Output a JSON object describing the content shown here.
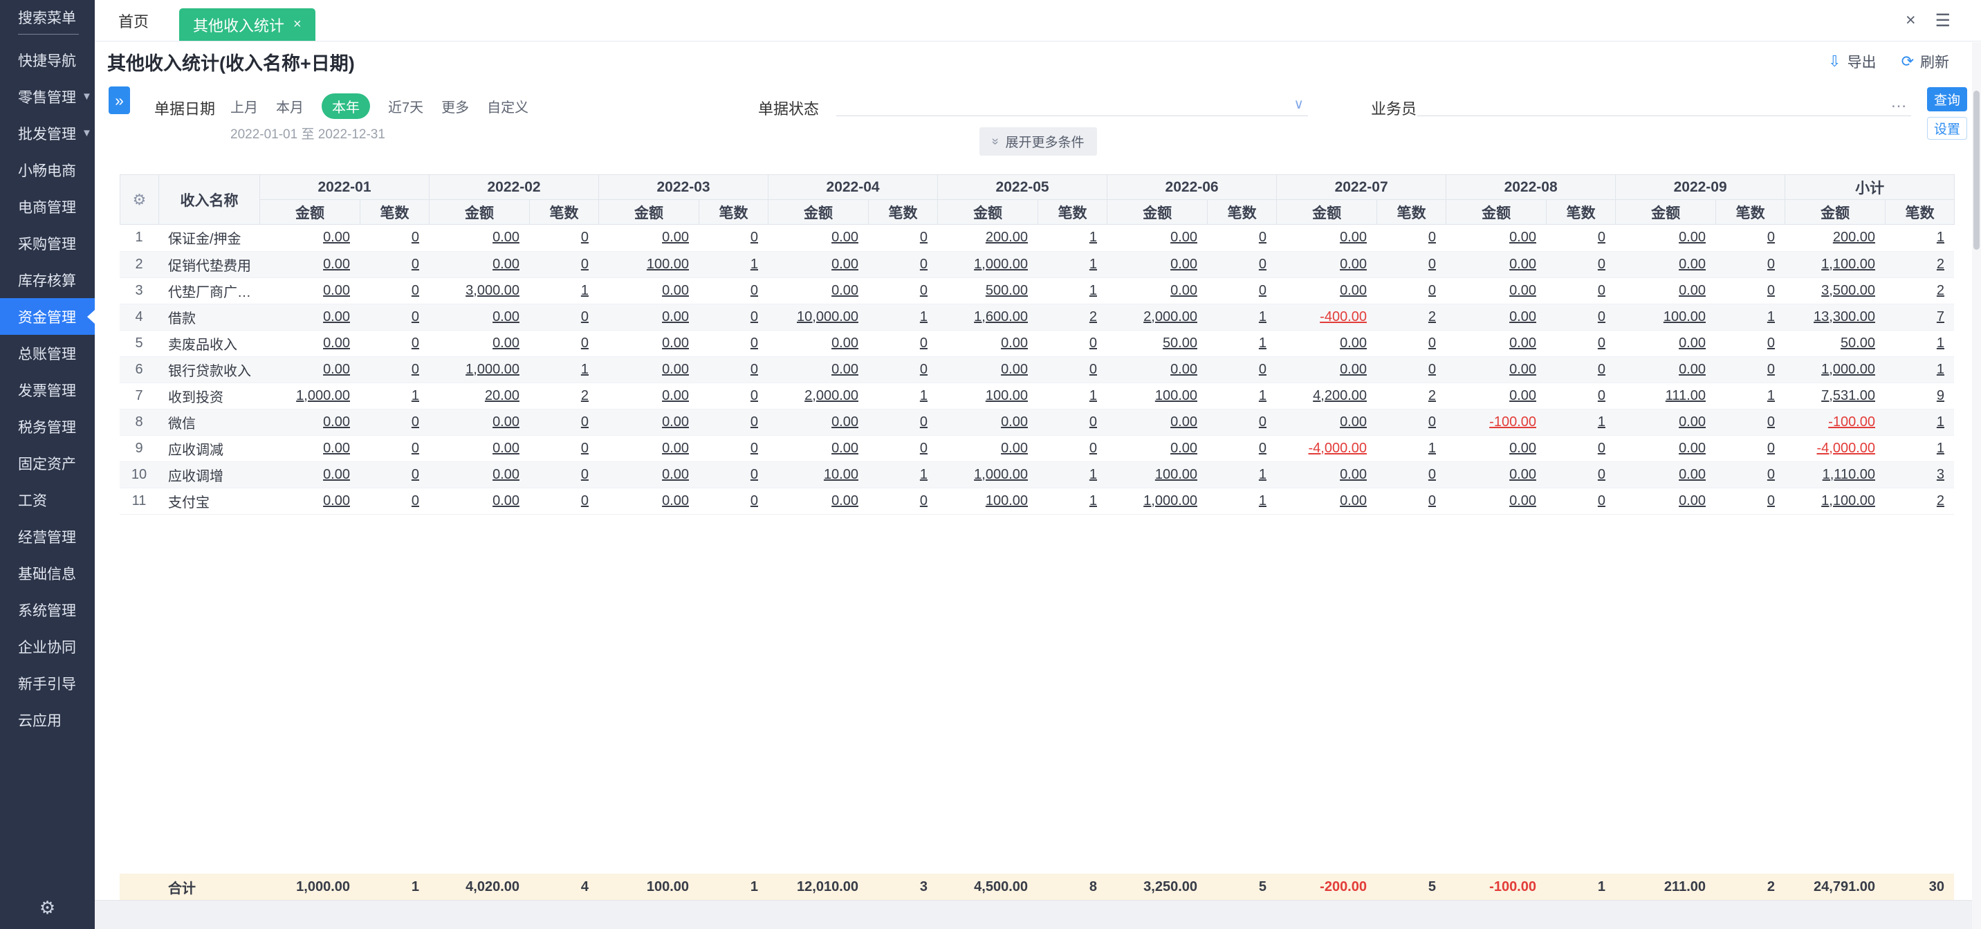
{
  "colors": {
    "sidebar_bg": "#2b3448",
    "sidebar_active": "#2d7cf6",
    "tab_active_green": "#2ebd85",
    "primary_blue": "#2d8cf0",
    "negative_red": "#e23c39",
    "total_row_bg": "#fcf3e1"
  },
  "sidebar": {
    "search_label": "搜索菜单",
    "items": [
      {
        "label": "快捷导航"
      },
      {
        "label": "零售管理",
        "expandable": true
      },
      {
        "label": "批发管理",
        "expandable": true
      },
      {
        "label": "小畅电商"
      },
      {
        "label": "电商管理"
      },
      {
        "label": "采购管理"
      },
      {
        "label": "库存核算"
      },
      {
        "label": "资金管理",
        "active": true
      },
      {
        "label": "总账管理"
      },
      {
        "label": "发票管理"
      },
      {
        "label": "税务管理"
      },
      {
        "label": "固定资产"
      },
      {
        "label": "工资"
      },
      {
        "label": "经营管理"
      },
      {
        "label": "基础信息"
      },
      {
        "label": "系统管理"
      },
      {
        "label": "企业协同"
      },
      {
        "label": "新手引导"
      },
      {
        "label": "云应用"
      }
    ]
  },
  "tabbar": {
    "home_tab": "首页",
    "active_tab": "其他收入统计",
    "close_glyph": "×"
  },
  "titlebar": {
    "title": "其他收入统计(收入名称+日期)",
    "export_label": "导出",
    "refresh_label": "刷新"
  },
  "filters": {
    "date_label": "单据日期",
    "date_options": [
      "上月",
      "本月",
      "本年",
      "近7天",
      "更多",
      "自定义"
    ],
    "date_selected": "本年",
    "date_range": "2022-01-01 至 2022-12-31",
    "status_label": "单据状态",
    "salesman_label": "业务员",
    "expand_label": "展开更多条件",
    "query_label": "查询",
    "settings_label": "设置"
  },
  "table": {
    "name_header": "收入名称",
    "amount_header": "金额",
    "count_header": "笔数",
    "subtotal_header": "小计",
    "total_label": "合计",
    "months": [
      "2022-01",
      "2022-02",
      "2022-03",
      "2022-04",
      "2022-05",
      "2022-06",
      "2022-07",
      "2022-08",
      "2022-09"
    ],
    "rows": [
      {
        "name": "保证金/押金",
        "cells": [
          [
            "0.00",
            "0"
          ],
          [
            "0.00",
            "0"
          ],
          [
            "0.00",
            "0"
          ],
          [
            "0.00",
            "0"
          ],
          [
            "200.00",
            "1"
          ],
          [
            "0.00",
            "0"
          ],
          [
            "0.00",
            "0"
          ],
          [
            "0.00",
            "0"
          ],
          [
            "0.00",
            "0"
          ],
          [
            "200.00",
            "1"
          ]
        ]
      },
      {
        "name": "促销代垫费用",
        "cells": [
          [
            "0.00",
            "0"
          ],
          [
            "0.00",
            "0"
          ],
          [
            "100.00",
            "1"
          ],
          [
            "0.00",
            "0"
          ],
          [
            "1,000.00",
            "1"
          ],
          [
            "0.00",
            "0"
          ],
          [
            "0.00",
            "0"
          ],
          [
            "0.00",
            "0"
          ],
          [
            "0.00",
            "0"
          ],
          [
            "1,100.00",
            "2"
          ]
        ]
      },
      {
        "name": "代垫厂商广…",
        "cells": [
          [
            "0.00",
            "0"
          ],
          [
            "3,000.00",
            "1"
          ],
          [
            "0.00",
            "0"
          ],
          [
            "0.00",
            "0"
          ],
          [
            "500.00",
            "1"
          ],
          [
            "0.00",
            "0"
          ],
          [
            "0.00",
            "0"
          ],
          [
            "0.00",
            "0"
          ],
          [
            "0.00",
            "0"
          ],
          [
            "3,500.00",
            "2"
          ]
        ]
      },
      {
        "name": "借款",
        "cells": [
          [
            "0.00",
            "0"
          ],
          [
            "0.00",
            "0"
          ],
          [
            "0.00",
            "0"
          ],
          [
            "10,000.00",
            "1"
          ],
          [
            "1,600.00",
            "2"
          ],
          [
            "2,000.00",
            "1"
          ],
          [
            "-400.00",
            "2"
          ],
          [
            "0.00",
            "0"
          ],
          [
            "100.00",
            "1"
          ],
          [
            "13,300.00",
            "7"
          ]
        ]
      },
      {
        "name": "卖废品收入",
        "cells": [
          [
            "0.00",
            "0"
          ],
          [
            "0.00",
            "0"
          ],
          [
            "0.00",
            "0"
          ],
          [
            "0.00",
            "0"
          ],
          [
            "0.00",
            "0"
          ],
          [
            "50.00",
            "1"
          ],
          [
            "0.00",
            "0"
          ],
          [
            "0.00",
            "0"
          ],
          [
            "0.00",
            "0"
          ],
          [
            "50.00",
            "1"
          ]
        ]
      },
      {
        "name": "银行贷款收入",
        "cells": [
          [
            "0.00",
            "0"
          ],
          [
            "1,000.00",
            "1"
          ],
          [
            "0.00",
            "0"
          ],
          [
            "0.00",
            "0"
          ],
          [
            "0.00",
            "0"
          ],
          [
            "0.00",
            "0"
          ],
          [
            "0.00",
            "0"
          ],
          [
            "0.00",
            "0"
          ],
          [
            "0.00",
            "0"
          ],
          [
            "1,000.00",
            "1"
          ]
        ]
      },
      {
        "name": "收到投资",
        "cells": [
          [
            "1,000.00",
            "1"
          ],
          [
            "20.00",
            "2"
          ],
          [
            "0.00",
            "0"
          ],
          [
            "2,000.00",
            "1"
          ],
          [
            "100.00",
            "1"
          ],
          [
            "100.00",
            "1"
          ],
          [
            "4,200.00",
            "2"
          ],
          [
            "0.00",
            "0"
          ],
          [
            "111.00",
            "1"
          ],
          [
            "7,531.00",
            "9"
          ]
        ]
      },
      {
        "name": "微信",
        "cells": [
          [
            "0.00",
            "0"
          ],
          [
            "0.00",
            "0"
          ],
          [
            "0.00",
            "0"
          ],
          [
            "0.00",
            "0"
          ],
          [
            "0.00",
            "0"
          ],
          [
            "0.00",
            "0"
          ],
          [
            "0.00",
            "0"
          ],
          [
            "-100.00",
            "1"
          ],
          [
            "0.00",
            "0"
          ],
          [
            "-100.00",
            "1"
          ]
        ]
      },
      {
        "name": "应收调减",
        "cells": [
          [
            "0.00",
            "0"
          ],
          [
            "0.00",
            "0"
          ],
          [
            "0.00",
            "0"
          ],
          [
            "0.00",
            "0"
          ],
          [
            "0.00",
            "0"
          ],
          [
            "0.00",
            "0"
          ],
          [
            "-4,000.00",
            "1"
          ],
          [
            "0.00",
            "0"
          ],
          [
            "0.00",
            "0"
          ],
          [
            "-4,000.00",
            "1"
          ]
        ]
      },
      {
        "name": "应收调增",
        "cells": [
          [
            "0.00",
            "0"
          ],
          [
            "0.00",
            "0"
          ],
          [
            "0.00",
            "0"
          ],
          [
            "10.00",
            "1"
          ],
          [
            "1,000.00",
            "1"
          ],
          [
            "100.00",
            "1"
          ],
          [
            "0.00",
            "0"
          ],
          [
            "0.00",
            "0"
          ],
          [
            "0.00",
            "0"
          ],
          [
            "1,110.00",
            "3"
          ]
        ]
      },
      {
        "name": "支付宝",
        "cells": [
          [
            "0.00",
            "0"
          ],
          [
            "0.00",
            "0"
          ],
          [
            "0.00",
            "0"
          ],
          [
            "0.00",
            "0"
          ],
          [
            "100.00",
            "1"
          ],
          [
            "1,000.00",
            "1"
          ],
          [
            "0.00",
            "0"
          ],
          [
            "0.00",
            "0"
          ],
          [
            "0.00",
            "0"
          ],
          [
            "1,100.00",
            "2"
          ]
        ]
      }
    ],
    "totals": [
      [
        "1,000.00",
        "1"
      ],
      [
        "4,020.00",
        "4"
      ],
      [
        "100.00",
        "1"
      ],
      [
        "12,010.00",
        "3"
      ],
      [
        "4,500.00",
        "8"
      ],
      [
        "3,250.00",
        "5"
      ],
      [
        "-200.00",
        "5"
      ],
      [
        "-100.00",
        "1"
      ],
      [
        "211.00",
        "2"
      ],
      [
        "24,791.00",
        "30"
      ]
    ]
  }
}
